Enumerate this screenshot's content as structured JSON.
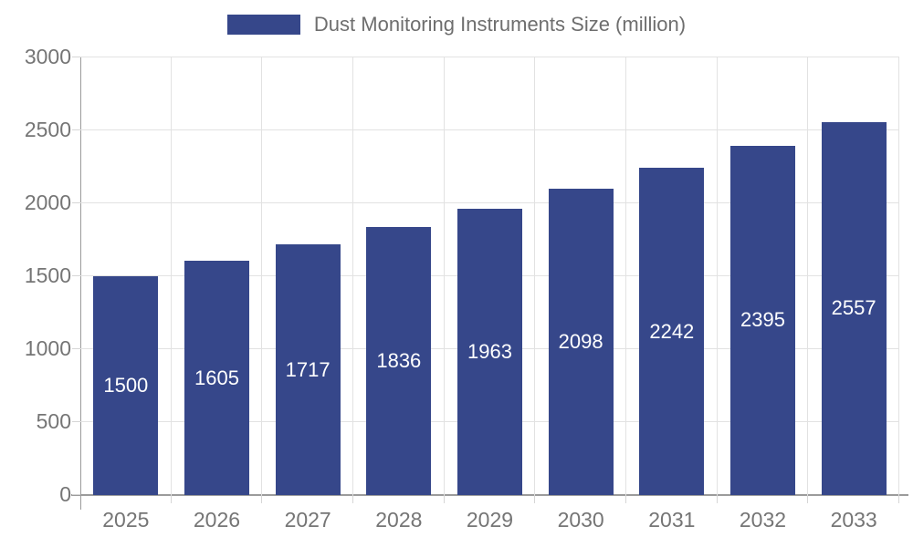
{
  "legend": {
    "label": "Dust Monitoring Instruments Size (million)"
  },
  "chart_data": {
    "type": "bar",
    "title": "Dust Monitoring Instruments Size (million)",
    "series_name": "Dust Monitoring Instruments Size (million)",
    "categories": [
      "2025",
      "2026",
      "2027",
      "2028",
      "2029",
      "2030",
      "2031",
      "2032",
      "2033"
    ],
    "values": [
      1500,
      1605,
      1717,
      1836,
      1963,
      2098,
      2242,
      2395,
      2557
    ],
    "xlabel": "",
    "ylabel": "",
    "ylim": [
      0,
      3000
    ],
    "yticks": [
      0,
      500,
      1000,
      1500,
      2000,
      2500,
      3000
    ],
    "grid": true,
    "legend_position": "top",
    "colors": {
      "bar": "#36478a",
      "grid": "#e2e2e2",
      "axis": "#9b9b9b",
      "tick": "#d6d6d6",
      "axis_label": "#757575",
      "legend_text": "#6e6e6e",
      "value_label": "#ffffff",
      "background": "#ffffff"
    }
  }
}
